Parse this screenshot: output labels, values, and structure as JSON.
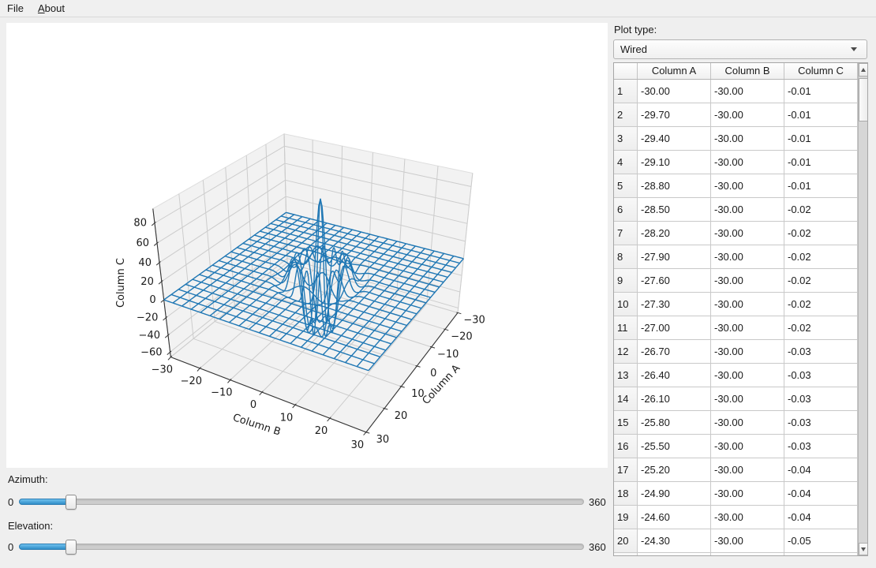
{
  "menu": {
    "items": [
      {
        "label": "File"
      },
      {
        "label": "About"
      }
    ]
  },
  "controls": {
    "azimuth": {
      "label": "Azimuth:",
      "min": "0",
      "max": "360",
      "fraction": 0.092
    },
    "elevation": {
      "label": "Elevation:",
      "min": "0",
      "max": "360",
      "fraction": 0.092
    }
  },
  "side_panel": {
    "plot_type_label": "Plot type:",
    "plot_type_value": "Wired",
    "table": {
      "headers": [
        "Column A",
        "Column B",
        "Column C"
      ],
      "rows": [
        {
          "n": "1",
          "a": "-30.00",
          "b": "-30.00",
          "c": "-0.01"
        },
        {
          "n": "2",
          "a": "-29.70",
          "b": "-30.00",
          "c": "-0.01"
        },
        {
          "n": "3",
          "a": "-29.40",
          "b": "-30.00",
          "c": "-0.01"
        },
        {
          "n": "4",
          "a": "-29.10",
          "b": "-30.00",
          "c": "-0.01"
        },
        {
          "n": "5",
          "a": "-28.80",
          "b": "-30.00",
          "c": "-0.01"
        },
        {
          "n": "6",
          "a": "-28.50",
          "b": "-30.00",
          "c": "-0.02"
        },
        {
          "n": "7",
          "a": "-28.20",
          "b": "-30.00",
          "c": "-0.02"
        },
        {
          "n": "8",
          "a": "-27.90",
          "b": "-30.00",
          "c": "-0.02"
        },
        {
          "n": "9",
          "a": "-27.60",
          "b": "-30.00",
          "c": "-0.02"
        },
        {
          "n": "10",
          "a": "-27.30",
          "b": "-30.00",
          "c": "-0.02"
        },
        {
          "n": "11",
          "a": "-27.00",
          "b": "-30.00",
          "c": "-0.02"
        },
        {
          "n": "12",
          "a": "-26.70",
          "b": "-30.00",
          "c": "-0.03"
        },
        {
          "n": "13",
          "a": "-26.40",
          "b": "-30.00",
          "c": "-0.03"
        },
        {
          "n": "14",
          "a": "-26.10",
          "b": "-30.00",
          "c": "-0.03"
        },
        {
          "n": "15",
          "a": "-25.80",
          "b": "-30.00",
          "c": "-0.03"
        },
        {
          "n": "16",
          "a": "-25.50",
          "b": "-30.00",
          "c": "-0.03"
        },
        {
          "n": "17",
          "a": "-25.20",
          "b": "-30.00",
          "c": "-0.04"
        },
        {
          "n": "18",
          "a": "-24.90",
          "b": "-30.00",
          "c": "-0.04"
        },
        {
          "n": "19",
          "a": "-24.60",
          "b": "-30.00",
          "c": "-0.04"
        },
        {
          "n": "20",
          "a": "-24.30",
          "b": "-30.00",
          "c": "-0.05"
        }
      ]
    }
  },
  "chart_data": {
    "type": "wireframe_3d",
    "xlabel": "Column B",
    "ylabel": "Column A",
    "zlabel": "Column C",
    "x_ticks": [
      -30,
      -20,
      -10,
      0,
      10,
      20,
      30
    ],
    "y_ticks": [
      -30,
      -20,
      -10,
      0,
      10,
      20,
      30
    ],
    "z_ticks": [
      80,
      60,
      40,
      20,
      0,
      -20,
      -40,
      -60
    ],
    "x_range": [
      -30,
      30
    ],
    "y_range": [
      -30,
      30
    ],
    "z_range": [
      -66,
      94
    ],
    "surface": {
      "formula": "z = 85 * cos(0.8*r) * exp(-(r/6.5)^2), r = sqrt(A^2+B^2); flat ~0 toward edges (corner values ~ -0.01..-0.05)",
      "amplitude": 85,
      "k": 0.8,
      "sigma": 6.5,
      "peak": 85,
      "trough": -59,
      "line_step": 3,
      "sample_step": 0.5
    },
    "view": {
      "azimuth_deg": -60,
      "elevation_deg": 30
    },
    "line_color": "#1f77b4",
    "grid": true
  },
  "colors": {
    "wireframe": "#1f77b4",
    "slider_fill": "#3d9bd4",
    "pane": "#f2f2f2",
    "grid_line": "#cccccc"
  }
}
